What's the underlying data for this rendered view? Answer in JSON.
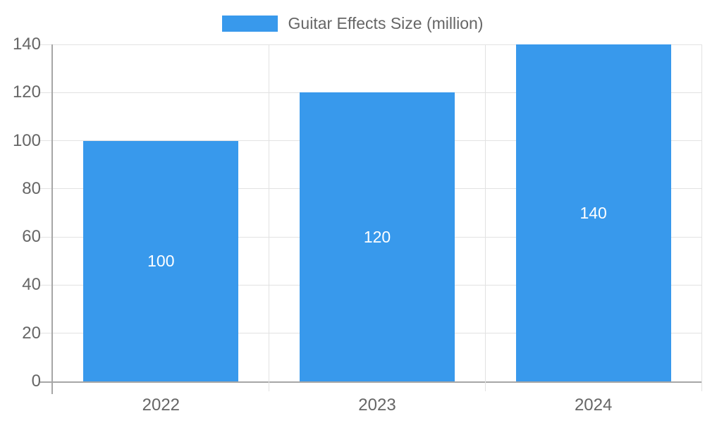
{
  "chart_data": {
    "type": "bar",
    "title": "Guitar Effects Size (million)",
    "legend_entries": [
      "Guitar Effects Size (million)"
    ],
    "legend_position": "top",
    "categories": [
      "2022",
      "2023",
      "2024"
    ],
    "values": [
      100,
      120,
      140
    ],
    "data_labels": [
      "100",
      "120",
      "140"
    ],
    "xlabel": "",
    "ylabel": "",
    "ylim": [
      0,
      140
    ],
    "yticks": [
      0,
      20,
      40,
      60,
      80,
      100,
      120,
      140
    ],
    "grid": true,
    "colors": {
      "bar": "#3899ec",
      "bar_label_text": "#ffffff",
      "axis_text": "#666666",
      "grid_line": "#e2e2e2",
      "axis_line": "#a6a6a6"
    }
  }
}
